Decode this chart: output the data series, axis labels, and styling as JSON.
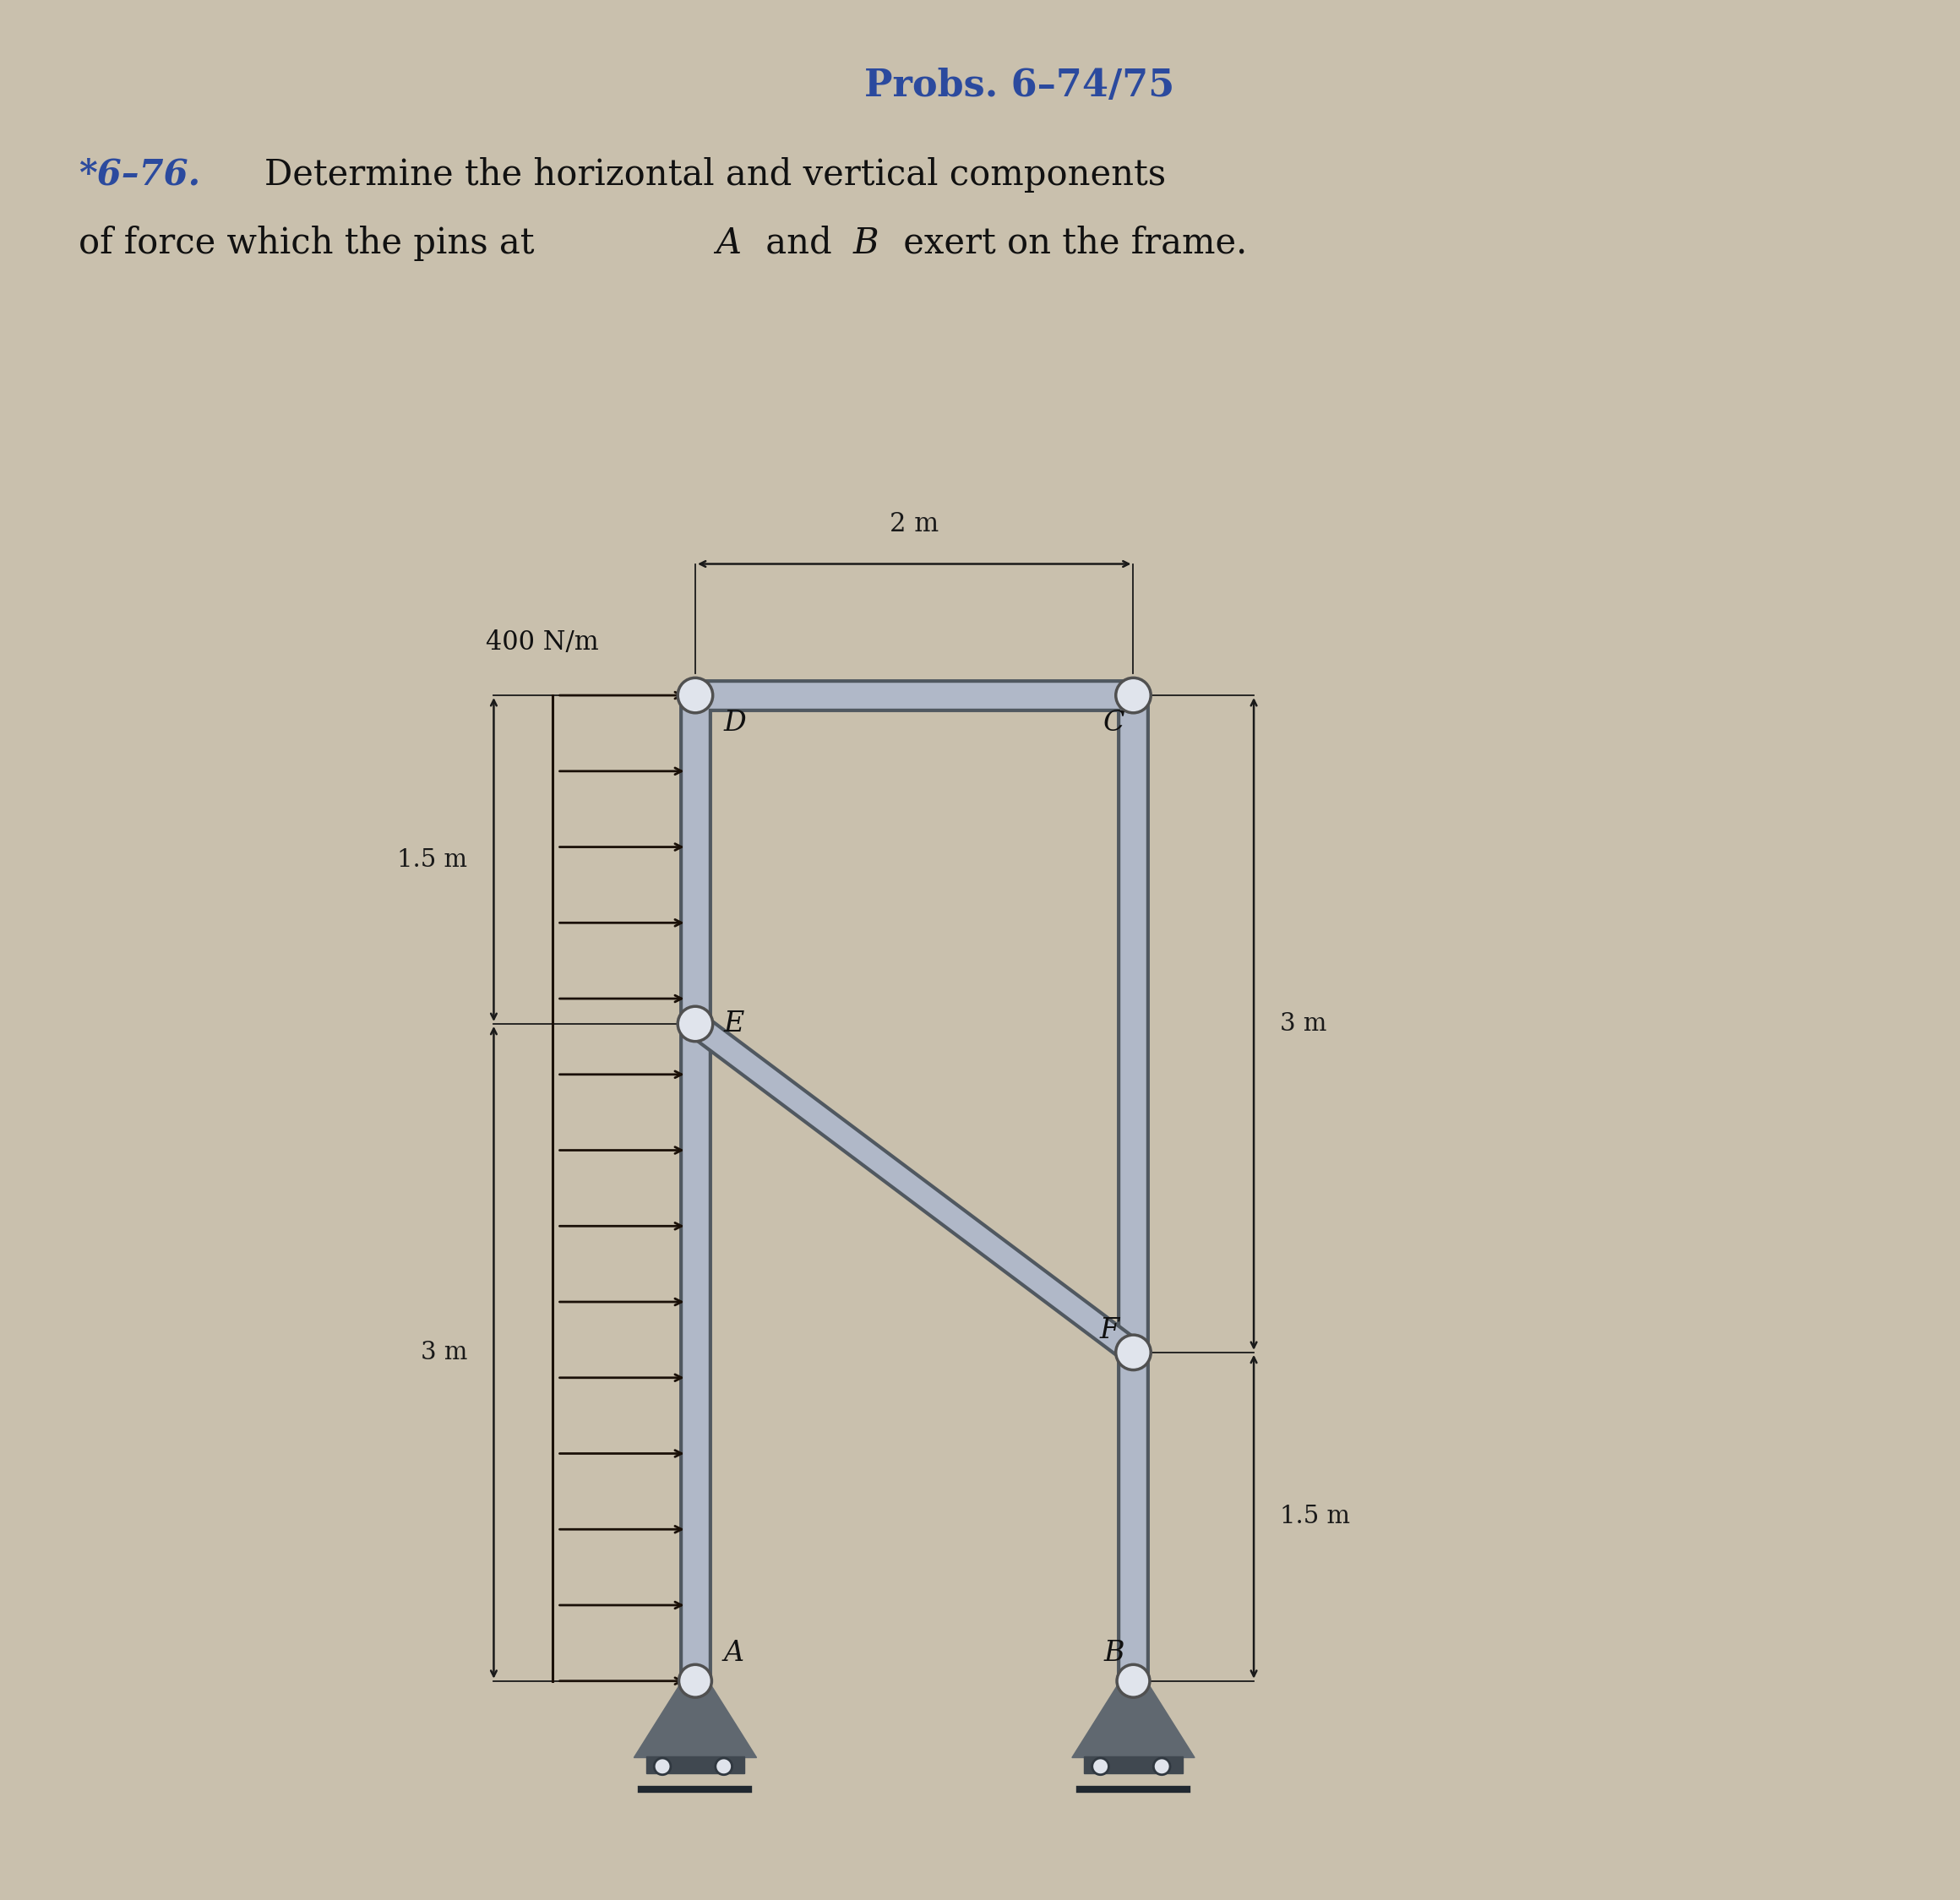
{
  "bg_color": "#c9c0ad",
  "title_above": "Probs. 6–74/75",
  "title_color": "#2b4a9e",
  "problem_label": "*6–76.",
  "frame_color": "#b0b8c8",
  "frame_edge_color": "#707880",
  "pin_bg": "#e0e4ec",
  "arrow_color": "#1a1008",
  "dim_color": "#1a1a1a",
  "D": [
    0.0,
    4.5
  ],
  "C": [
    2.0,
    4.5
  ],
  "E": [
    0.0,
    3.0
  ],
  "F": [
    2.0,
    1.5
  ],
  "A": [
    0.0,
    0.0
  ],
  "B": [
    2.0,
    0.0
  ],
  "load_magnitude": "400 N/m",
  "dim_2m": "2 m",
  "dim_15m_top": "1.5 m",
  "dim_3m_right": "3 m",
  "dim_3m_left": "3 m",
  "dim_15m_bot": "1.5 m",
  "label_D": "D",
  "label_C": "C",
  "label_E": "E",
  "label_F": "F",
  "label_A": "A",
  "label_B": "B",
  "text_line1": "Determine the horizontal and vertical components",
  "text_line2": "of force which the pins at ",
  "text_line2b": " and ",
  "text_line2c": " exert on the frame."
}
